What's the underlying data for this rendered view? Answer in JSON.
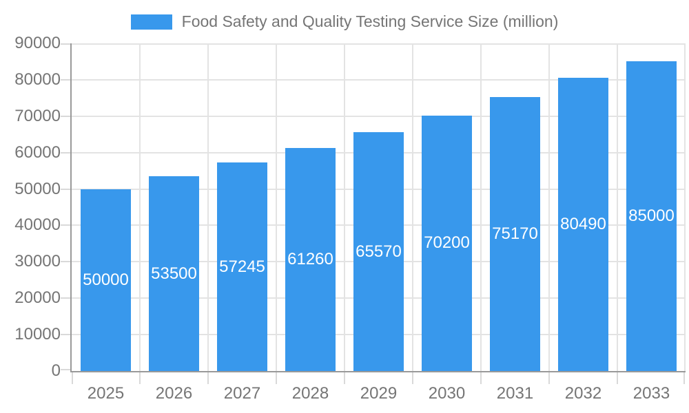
{
  "legend": {
    "label": "Food Safety and Quality Testing Service Size (million)"
  },
  "colors": {
    "background": "#ffffff",
    "bar": "#3898ec",
    "axis_line": "#999999",
    "grid_line": "#e3e3e3",
    "tick_line": "#d9d9d9",
    "axis_text": "#757575",
    "legend_text": "#757575",
    "bar_label_text": "#ffffff"
  },
  "chart_data": {
    "type": "bar",
    "title": "",
    "xlabel": "",
    "ylabel": "",
    "categories": [
      "2025",
      "2026",
      "2027",
      "2028",
      "2029",
      "2030",
      "2031",
      "2032",
      "2033"
    ],
    "series": [
      {
        "name": "Food Safety and Quality Testing Service Size (million)",
        "values": [
          50000,
          53500,
          57245,
          61260,
          65570,
          70200,
          75170,
          80490,
          85000
        ]
      }
    ],
    "ylim": [
      0,
      90000
    ],
    "ytick_step": 10000,
    "yticks": [
      0,
      10000,
      20000,
      30000,
      40000,
      50000,
      60000,
      70000,
      80000,
      90000
    ],
    "grid": true,
    "vertical_grid": true,
    "legend_position": "top",
    "bar_labels_visible": true,
    "bar_label_position": "inside-middle"
  }
}
